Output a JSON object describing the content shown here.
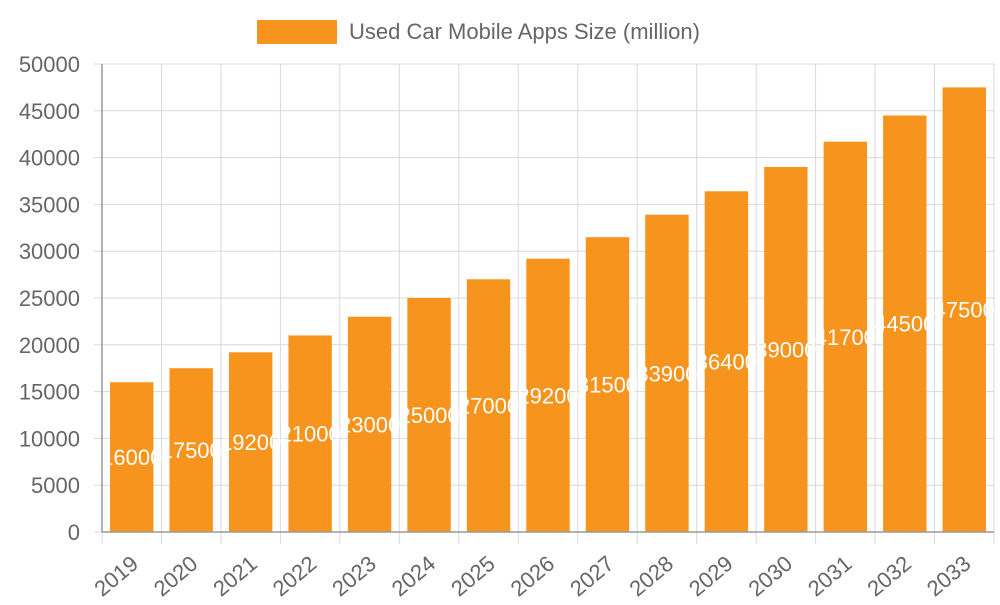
{
  "legend": {
    "label": "Used Car Mobile Apps Size (million)",
    "placement": "top-center"
  },
  "chart_data": {
    "type": "bar",
    "categories": [
      "2019",
      "2020",
      "2021",
      "2022",
      "2023",
      "2024",
      "2025",
      "2026",
      "2027",
      "2028",
      "2029",
      "2030",
      "2031",
      "2032",
      "2033"
    ],
    "series": [
      {
        "name": "Used Car Mobile Apps Size (million)",
        "values": [
          16000,
          17500,
          19200,
          21000,
          23000,
          25000,
          27000,
          29200,
          31500,
          33900,
          36400,
          39000,
          41700,
          44500,
          47500
        ],
        "color": "#f7941d"
      }
    ],
    "ylim": [
      0,
      50000
    ],
    "yticks": [
      0,
      5000,
      10000,
      15000,
      20000,
      25000,
      30000,
      35000,
      40000,
      45000,
      50000
    ],
    "grid": true,
    "data_labels": true,
    "colors": {
      "grid": "#d9d9d9",
      "axis": "#999999",
      "tick_text": "#666666",
      "data_label": "#ffffff"
    }
  }
}
